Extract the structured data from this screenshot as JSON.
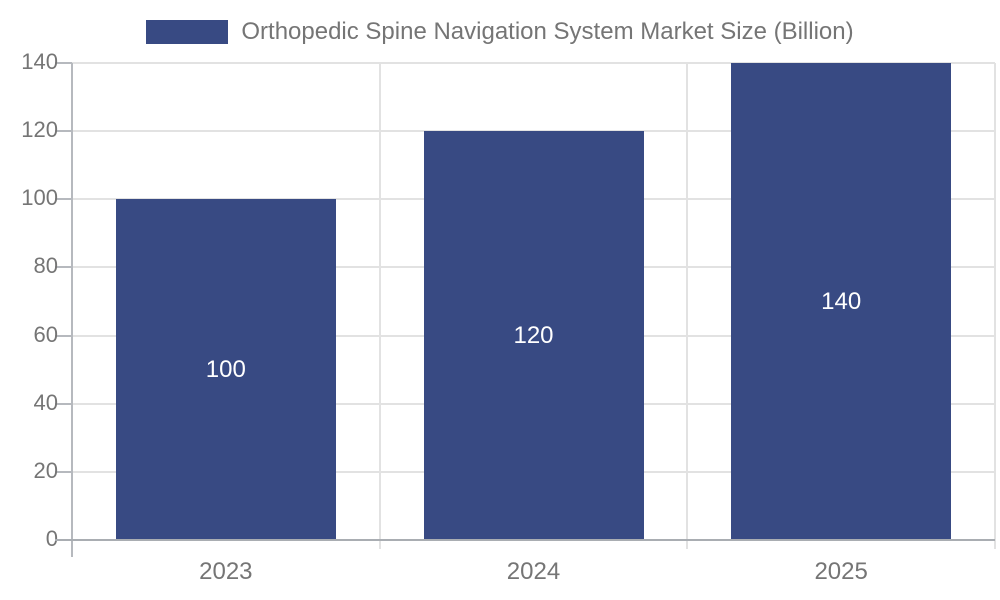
{
  "legend": {
    "label": "Orthopedic Spine Navigation System Market Size (Billion)",
    "swatch_color": "#384a83"
  },
  "chart_data": {
    "type": "bar",
    "title": "Orthopedic Spine Navigation System Market Size (Billion)",
    "categories": [
      "2023",
      "2024",
      "2025"
    ],
    "values": [
      100,
      120,
      140
    ],
    "data_labels": [
      "100",
      "120",
      "140"
    ],
    "xlabel": "",
    "ylabel": "",
    "ylim": [
      0,
      140
    ],
    "yticks": [
      0,
      20,
      40,
      60,
      80,
      100,
      120,
      140
    ],
    "grid": true,
    "legend_position": "top",
    "colors": {
      "bar": "#384a83",
      "data_label": "#ffffff",
      "grid": "#e2e2e2",
      "axis": "#b6b9be",
      "baseline": "#a9adb2",
      "tick_text": "#757575",
      "background": "#ffffff"
    }
  }
}
